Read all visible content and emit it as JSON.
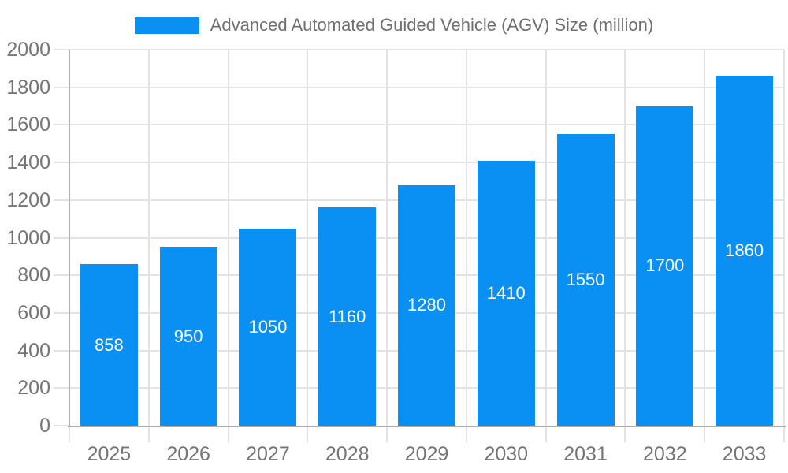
{
  "chart_data": {
    "type": "bar",
    "title": "Advanced Automated Guided Vehicle (AGV) Size (million)",
    "legend": [
      "Advanced Automated Guided Vehicle (AGV) Size (million)"
    ],
    "legend_position": "top",
    "categories": [
      "2025",
      "2026",
      "2027",
      "2028",
      "2029",
      "2030",
      "2031",
      "2032",
      "2033"
    ],
    "values": [
      858,
      950,
      1050,
      1160,
      1280,
      1410,
      1550,
      1700,
      1860
    ],
    "value_labels": [
      "858",
      "950",
      "1050",
      "1160",
      "1280",
      "1410",
      "1550",
      "1700",
      "1860"
    ],
    "xlabel": "",
    "ylabel": "",
    "ylim": [
      0,
      2000
    ],
    "ytick_step": 200,
    "ytick_labels": [
      "0",
      "200",
      "400",
      "600",
      "800",
      "1000",
      "1200",
      "1400",
      "1600",
      "1800",
      "2000"
    ],
    "grid": true,
    "value_label_position": "center-inside-bar",
    "colors": {
      "bar": "#0990F2",
      "value_label": "#FFFFFF",
      "axis_text": "#757575",
      "legend_text": "#6F6F6F",
      "gridline": "#E3E3E3",
      "axis_line": "#B0B0B0",
      "background": "#FFFFFF"
    }
  }
}
